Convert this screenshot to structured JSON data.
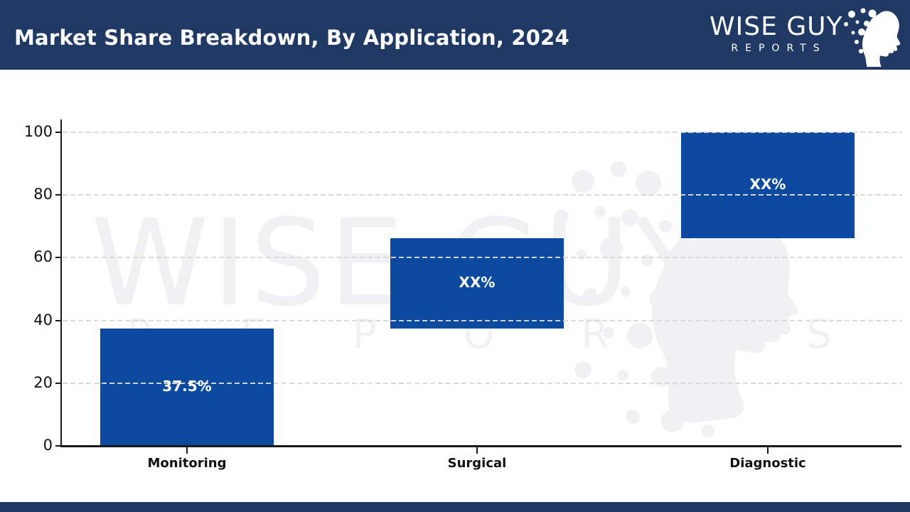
{
  "header": {
    "title": "Market Share Breakdown, By Application, 2024",
    "logo": {
      "brand": "WISE GUY",
      "sub": "REPORTS"
    }
  },
  "watermark": {
    "brand": "WISE GUY",
    "sub": "REPORTS"
  },
  "chart_data": {
    "type": "bar",
    "subtype": "floating-segment-waterfall",
    "title": "Market Share Breakdown, By Application, 2024",
    "categories": [
      "Monitoring",
      "Surgical",
      "Diagnostic"
    ],
    "segments": [
      {
        "category": "Monitoring",
        "start": 0,
        "end": 37.5,
        "label": "37.5%"
      },
      {
        "category": "Surgical",
        "start": 37.5,
        "end": 66.3,
        "label": "XX%"
      },
      {
        "category": "Diagnostic",
        "start": 66.3,
        "end": 100,
        "label": "XX%"
      }
    ],
    "yticks": [
      0,
      20,
      40,
      60,
      80,
      100
    ],
    "ylim": [
      0,
      100
    ],
    "grid": "dashed-horizontal",
    "legend": "none",
    "xlabel": "",
    "ylabel": ""
  },
  "colors": {
    "header_bg": "#1f3864",
    "footer_bg": "#1f3864",
    "bar": "#0b4a9e",
    "bar_label": "#ffffff",
    "grid": "#d9d9d9",
    "axis": "#1a1a1a",
    "watermark": "#f1f1f3"
  }
}
